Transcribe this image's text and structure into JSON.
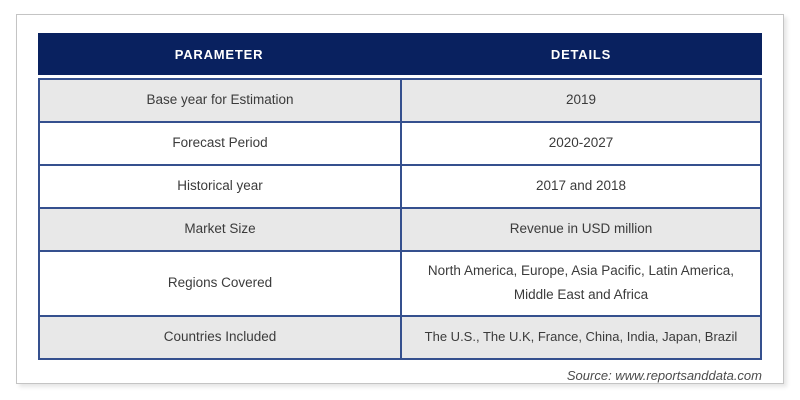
{
  "table": {
    "columns": [
      "PARAMETER",
      "DETAILS"
    ],
    "rows": [
      {
        "parameter": "Base year for Estimation",
        "details": "2019",
        "shaded": true
      },
      {
        "parameter": "Forecast Period",
        "details": "2020-2027",
        "shaded": false
      },
      {
        "parameter": "Historical year",
        "details": "2017 and 2018",
        "shaded": false
      },
      {
        "parameter": "Market Size",
        "details": "Revenue in USD million",
        "shaded": true
      },
      {
        "parameter": "Regions Covered",
        "details": "North America, Europe, Asia Pacific, Latin America, Middle East and Africa",
        "shaded": false
      },
      {
        "parameter": "Countries Included",
        "details": "The U.S., The  U.K, France, China, India, Japan, Brazil",
        "shaded": true
      }
    ]
  },
  "footer": {
    "source": "Source: www.reportsanddata.com"
  },
  "colors": {
    "header_navy": "#09215f",
    "border_navy": "#35508e",
    "shaded_row_gray": "#e8e8e8",
    "cell_text": "#3b3b3b",
    "source_text": "#4c4c4c"
  }
}
